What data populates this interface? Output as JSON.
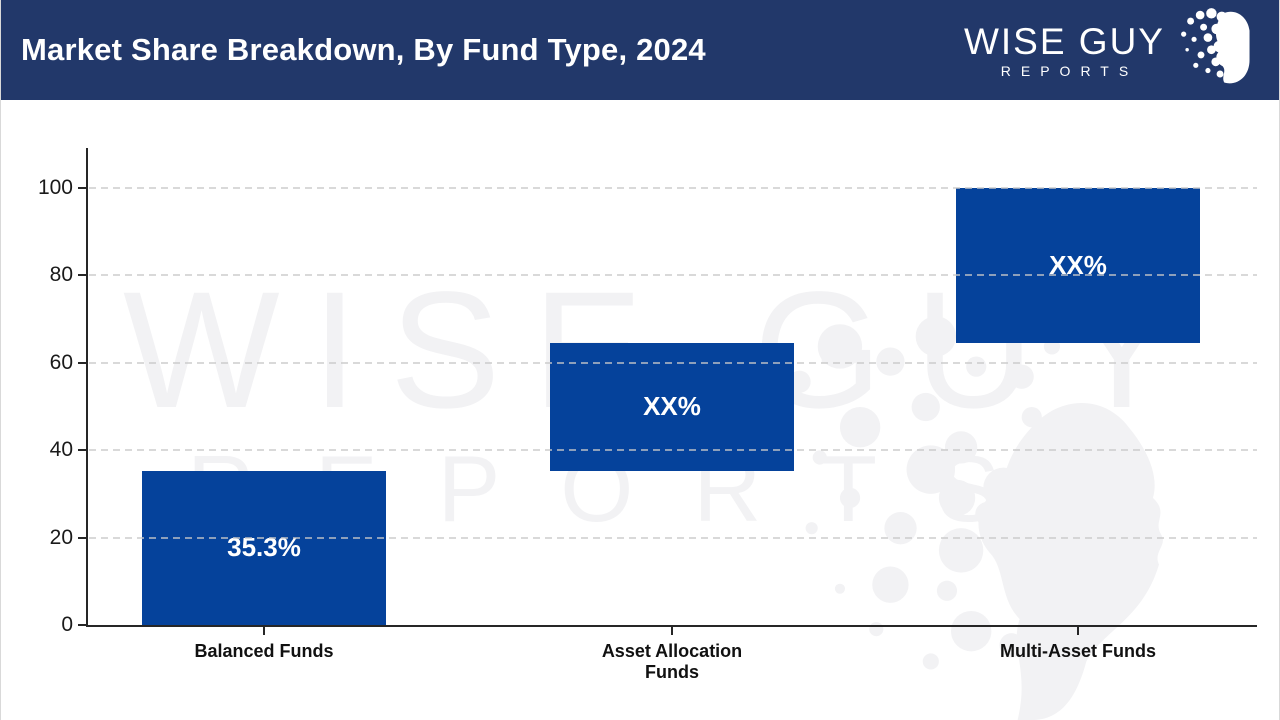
{
  "header": {
    "title": "Market Share Breakdown, By Fund Type, 2024",
    "logo": {
      "primary": "WISE GUY",
      "secondary": "REPORTS"
    }
  },
  "watermark": {
    "primary": "WISE GUY",
    "secondary": "REPORTS"
  },
  "colors": {
    "header_bg": "#22386A",
    "bar": "#05429B",
    "bar_label": "#ffffff",
    "axis": "#262626",
    "grid": "#c9c9c9",
    "tick_label": "#1a1a1a",
    "watermark": "#f2f2f4"
  },
  "chart_data": {
    "type": "bar",
    "variant": "floating-waterfall-segments",
    "title": "Market Share Breakdown, By Fund Type, 2024",
    "categories": [
      "Balanced Funds",
      "Asset Allocation\nFunds",
      "Multi-Asset Funds"
    ],
    "segments": [
      {
        "category": "Balanced Funds",
        "start": 0,
        "end": 35.3,
        "label": "35.3%"
      },
      {
        "category": "Asset Allocation Funds",
        "start": 35.3,
        "end": 64.6,
        "label": "XX%"
      },
      {
        "category": "Multi-Asset Funds",
        "start": 64.6,
        "end": 100,
        "label": "XX%"
      }
    ],
    "yticks": [
      0,
      20,
      40,
      60,
      80,
      100
    ],
    "ylim": [
      0,
      109
    ],
    "xlabel": "",
    "ylabel": "",
    "grid": "horizontal-dashed",
    "legend": "none"
  }
}
